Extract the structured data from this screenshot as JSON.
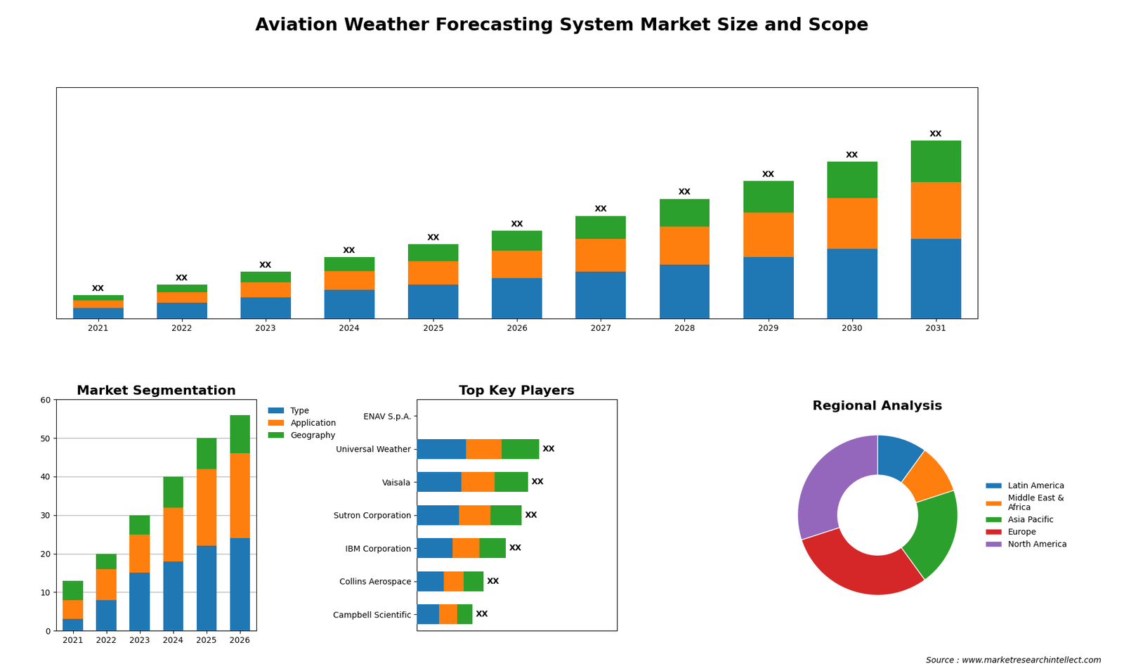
{
  "title": "Aviation Weather Forecasting System Market Size and Scope",
  "annotations": [
    "Source : www.marketresearchintellect.com"
  ],
  "chart_data": [
    {
      "type": "bar",
      "stacked": true,
      "categories": [
        "2021",
        "2022",
        "2023",
        "2024",
        "2025",
        "2026",
        "2027",
        "2028",
        "2029",
        "2030",
        "2031"
      ],
      "series": [
        {
          "values": [
            0.5,
            0.75,
            1.0,
            1.35,
            1.6,
            1.9,
            2.2,
            2.55,
            2.9,
            3.3,
            3.75
          ]
        },
        {
          "values": [
            0.35,
            0.5,
            0.7,
            0.9,
            1.1,
            1.3,
            1.55,
            1.8,
            2.1,
            2.4,
            2.7
          ]
        },
        {
          "values": [
            0.25,
            0.35,
            0.5,
            0.65,
            0.8,
            0.95,
            1.1,
            1.3,
            1.5,
            1.7,
            1.95
          ],
          "value_labels": [
            "XX",
            "XX",
            "XX",
            "XX",
            "XX",
            "XX",
            "XX",
            "XX",
            "XX",
            "XX",
            "XX"
          ]
        }
      ],
      "data_labels": true,
      "ylim": [
        0,
        10.92
      ],
      "yticks": [],
      "tick_labels": "x"
    },
    {
      "type": "bar",
      "stacked": true,
      "title": "Market Segmentation",
      "categories": [
        "2021",
        "2022",
        "2023",
        "2024",
        "2025",
        "2026"
      ],
      "series": [
        {
          "name": "Type",
          "values": [
            3,
            8,
            15,
            18,
            22,
            24
          ]
        },
        {
          "name": "Application",
          "values": [
            5,
            8,
            10,
            14,
            20,
            22
          ]
        },
        {
          "name": "Geography",
          "values": [
            5,
            4,
            5,
            8,
            8,
            10
          ]
        }
      ],
      "ylim": [
        0,
        60
      ],
      "yticks": [
        0,
        10,
        20,
        30,
        40,
        50,
        60
      ],
      "grid": true,
      "legend": "upper left"
    },
    {
      "type": "bar",
      "stacked": true,
      "orientation": "horizontal",
      "title": "Top Key Players",
      "categories": [
        "ENAV S.p.A.",
        "Universal Weather",
        "Vaisala",
        "Sutron Corporation",
        "IBM Corporation",
        "Collins Aerospace",
        "Campbell Scientific"
      ],
      "series": [
        {
          "values": [
            0,
            2.2,
            2.0,
            1.9,
            1.6,
            1.2,
            1.0
          ]
        },
        {
          "values": [
            0,
            1.6,
            1.5,
            1.4,
            1.2,
            0.9,
            0.8
          ]
        },
        {
          "values": [
            0,
            1.7,
            1.5,
            1.4,
            1.2,
            0.9,
            0.7
          ],
          "value_labels": [
            null,
            "XX",
            "XX",
            "XX",
            "XX",
            "XX",
            "XX"
          ]
        }
      ],
      "data_labels": true,
      "xlim": [
        0,
        9
      ],
      "xticks": [],
      "tick_labels": "y"
    },
    {
      "type": "donut",
      "title": "Regional Analysis",
      "categories": [
        "Latin America",
        "Middle East &\nAfrica",
        "Asia Pacific",
        "Europe",
        "North America"
      ],
      "values": [
        10,
        10,
        20,
        30,
        30
      ],
      "legend": "center left"
    }
  ]
}
